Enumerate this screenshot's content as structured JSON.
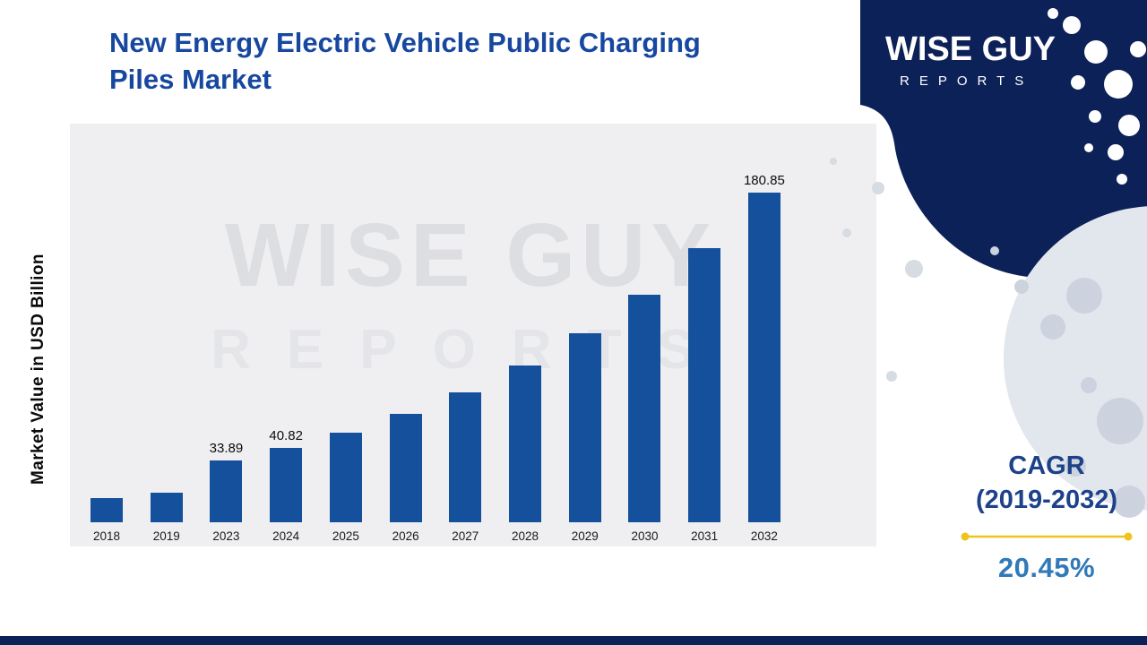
{
  "page": {
    "title": "New Energy Electric Vehicle Public Charging Piles Market"
  },
  "logo": {
    "line1": "WISE GUY",
    "line2": "REPORTS"
  },
  "watermark": {
    "line1": "WISE GUY",
    "line2": "REPORTS"
  },
  "cagr": {
    "label": "CAGR",
    "range": "(2019-2032)",
    "value": "20.45%"
  },
  "colors": {
    "title_blue": "#17479e",
    "bar_blue": "#14509c",
    "navy": "#0c2157",
    "gold": "#eec31e",
    "percent_blue": "#3279b7",
    "plot_background": "#efeff1"
  },
  "chart_data": {
    "type": "bar",
    "title": "New Energy Electric Vehicle Public Charging Piles Market",
    "xlabel": "",
    "ylabel": "Market Value in USD Billion",
    "categories": [
      "2018",
      "2019",
      "2023",
      "2024",
      "2025",
      "2026",
      "2027",
      "2028",
      "2029",
      "2030",
      "2031",
      "2032"
    ],
    "values": [
      13.37,
      16.1,
      33.89,
      40.82,
      49.17,
      59.22,
      71.33,
      85.92,
      103.49,
      124.65,
      150.14,
      180.85
    ],
    "data_labels": [
      "",
      "",
      "33.89",
      "40.82",
      "",
      "",
      "",
      "",
      "",
      "",
      "",
      "180.85"
    ],
    "ylim": [
      0,
      185
    ],
    "bar_color": "#14509c",
    "grid": false,
    "legend": false
  }
}
